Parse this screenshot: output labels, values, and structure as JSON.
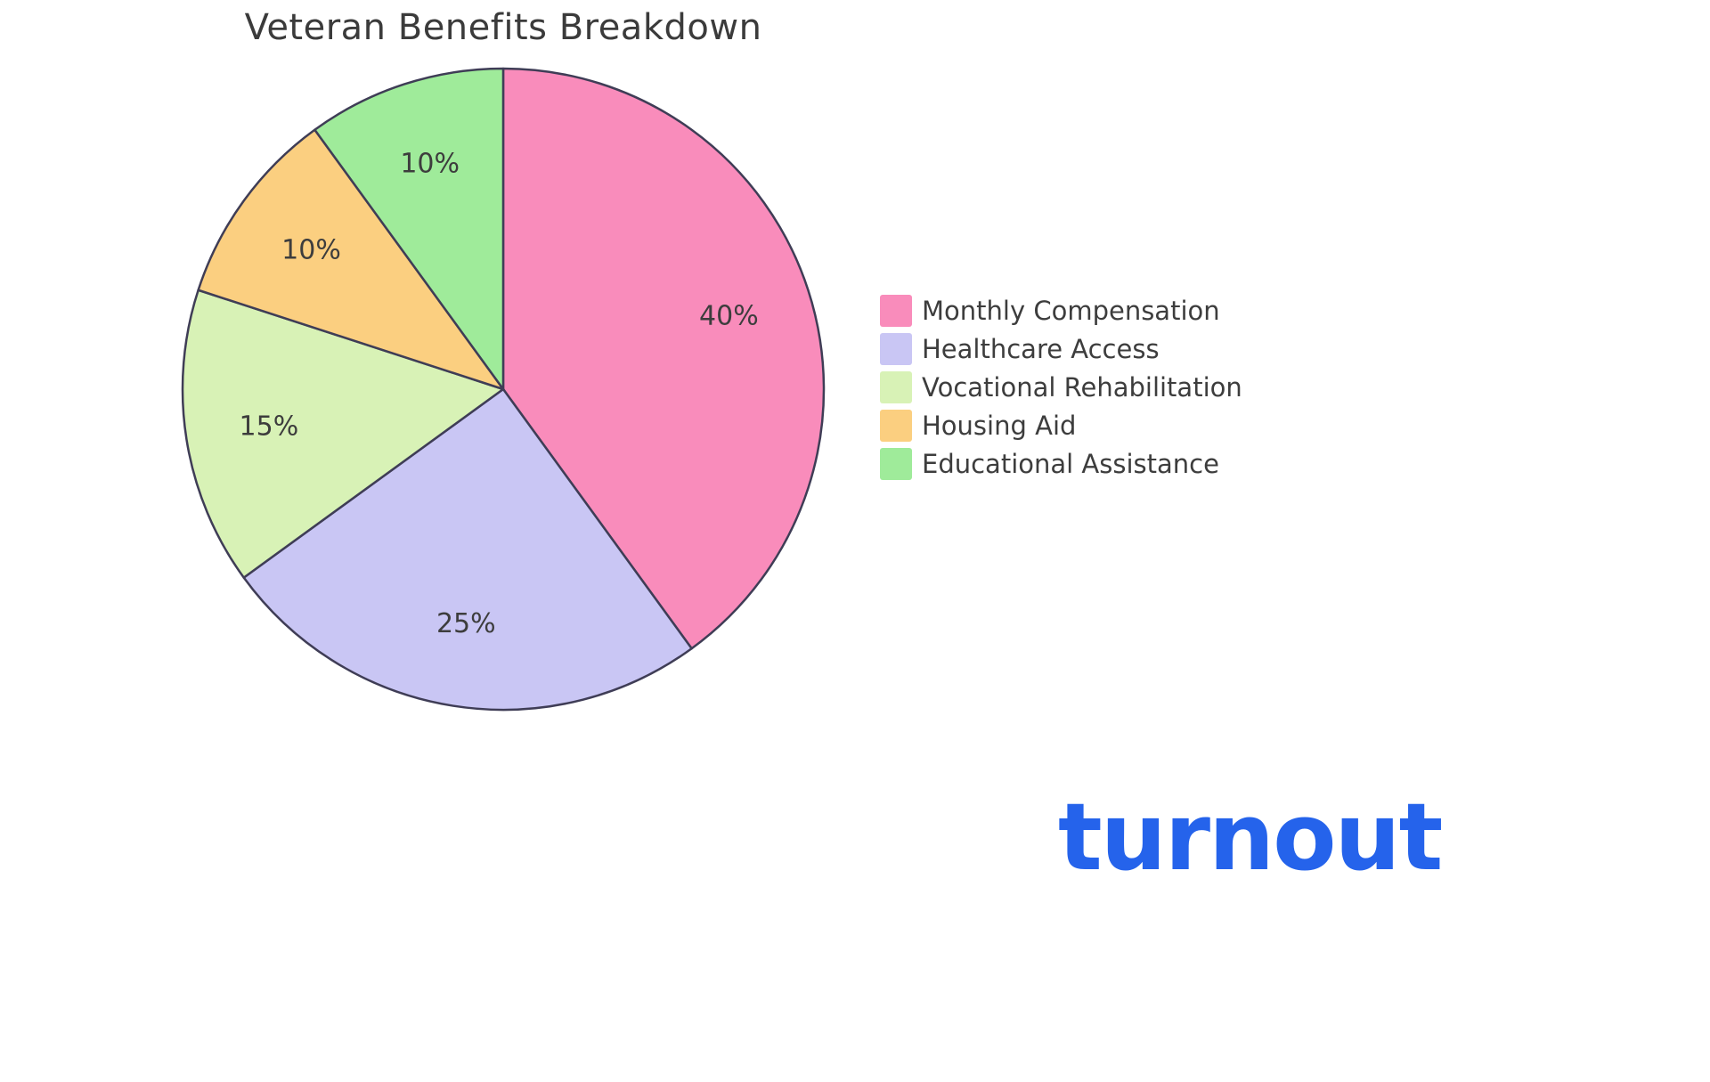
{
  "chart_data": {
    "type": "pie",
    "title": "Veteran Benefits Breakdown",
    "direction": "clockwise",
    "start_angle_deg": 0,
    "legend_position": "right",
    "stroke_color": "#3f3d56",
    "label_color": "#3d3d3d",
    "segments": [
      {
        "label": "Monthly Compensation",
        "value": 40,
        "display": "40%",
        "color": "#f98cbb"
      },
      {
        "label": "Healthcare Access",
        "value": 25,
        "display": "25%",
        "color": "#c9c6f4"
      },
      {
        "label": "Vocational Rehabilitation",
        "value": 15,
        "display": "15%",
        "color": "#d8f2b6"
      },
      {
        "label": "Housing Aid",
        "value": 10,
        "display": "10%",
        "color": "#fbcf80"
      },
      {
        "label": "Educational Assistance",
        "value": 10,
        "display": "10%",
        "color": "#9feb9a"
      }
    ]
  },
  "footer": {
    "brand": "turnout",
    "brand_color": "#2563eb"
  }
}
